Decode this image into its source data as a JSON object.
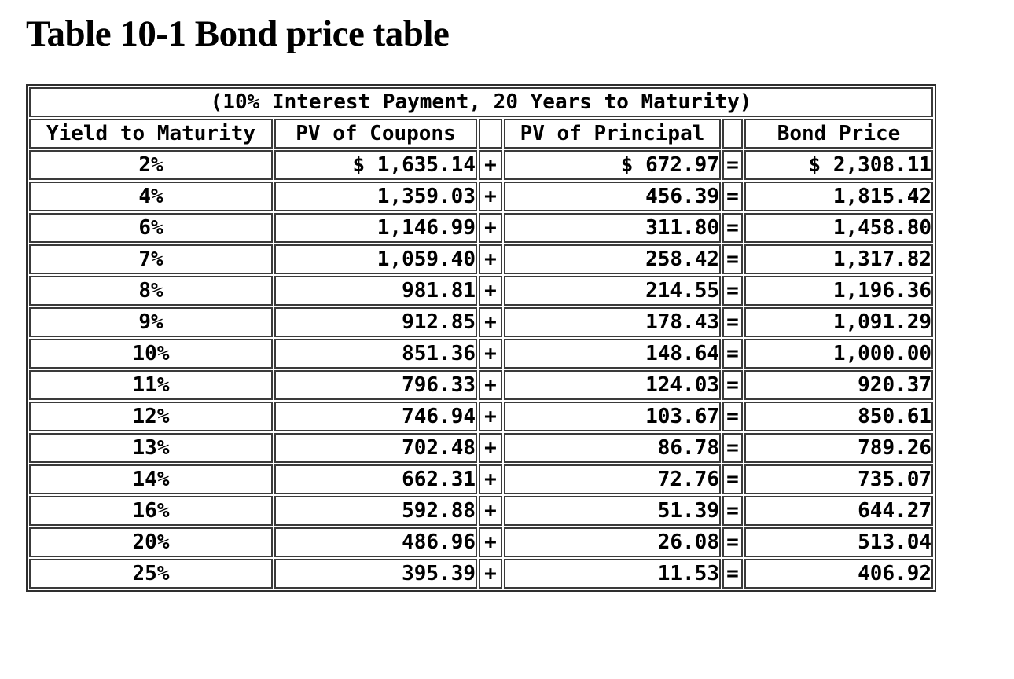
{
  "page": {
    "background": "#ffffff",
    "text_color": "#000000",
    "border_color": "#3a3a3a"
  },
  "title": "Table 10-1 Bond price table",
  "bond_table": {
    "caption": "(10% Interest Payment, 20 Years to Maturity)",
    "headers": {
      "yield": "Yield to Maturity",
      "coupons": "PV of Coupons",
      "principal": "PV of Principal",
      "price": "Bond Price"
    },
    "operators": {
      "plus": "+",
      "equals": "="
    },
    "rows": [
      {
        "yield": "2%",
        "coupons": "$ 1,635.14",
        "principal": "$ 672.97",
        "price": "$ 2,308.11"
      },
      {
        "yield": "4%",
        "coupons": "1,359.03",
        "principal": "456.39",
        "price": "1,815.42"
      },
      {
        "yield": "6%",
        "coupons": "1,146.99",
        "principal": "311.80",
        "price": "1,458.80"
      },
      {
        "yield": "7%",
        "coupons": "1,059.40",
        "principal": "258.42",
        "price": "1,317.82"
      },
      {
        "yield": "8%",
        "coupons": "981.81",
        "principal": "214.55",
        "price": "1,196.36"
      },
      {
        "yield": "9%",
        "coupons": "912.85",
        "principal": "178.43",
        "price": "1,091.29"
      },
      {
        "yield": "10%",
        "coupons": "851.36",
        "principal": "148.64",
        "price": "1,000.00"
      },
      {
        "yield": "11%",
        "coupons": "796.33",
        "principal": "124.03",
        "price": "920.37"
      },
      {
        "yield": "12%",
        "coupons": "746.94",
        "principal": "103.67",
        "price": "850.61"
      },
      {
        "yield": "13%",
        "coupons": "702.48",
        "principal": "86.78",
        "price": "789.26"
      },
      {
        "yield": "14%",
        "coupons": "662.31",
        "principal": "72.76",
        "price": "735.07"
      },
      {
        "yield": "16%",
        "coupons": "592.88",
        "principal": "51.39",
        "price": "644.27"
      },
      {
        "yield": "20%",
        "coupons": "486.96",
        "principal": "26.08",
        "price": "513.04"
      },
      {
        "yield": "25%",
        "coupons": "395.39",
        "principal": "11.53",
        "price": "406.92"
      }
    ]
  }
}
